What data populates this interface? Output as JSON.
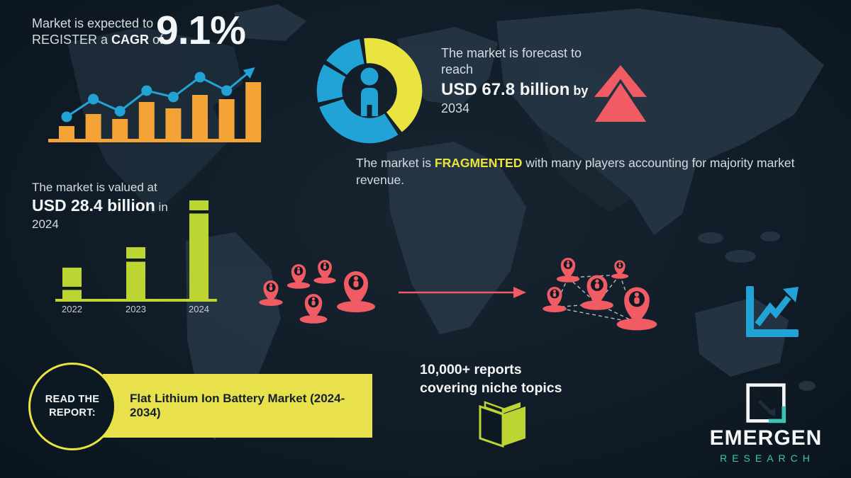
{
  "colors": {
    "background": "#0d1924",
    "map_land": "#263645",
    "map_land_dark": "#1e2d3a",
    "orange": "#f4a337",
    "blue": "#22a3d6",
    "yellow": "#e9e43f",
    "banner_yellow": "#e9e14c",
    "green": "#bdd532",
    "red": "#f15b63",
    "teal": "#3fc3b5",
    "dark": "#0d1a24",
    "text_light": "#d6dce0",
    "text_white": "#f3f5f6",
    "dash": "#cfd6da"
  },
  "cagr_block": {
    "line1": "Market is expected to",
    "line2_pre": "REGISTER a ",
    "line2_bold": "CAGR",
    "line2_post": " of",
    "value": "9.1%"
  },
  "forecast_block": {
    "line1": "The market is forecast to",
    "line2": "reach",
    "value": "USD 67.8 billion",
    "suffix": " by",
    "year": "2034"
  },
  "fragmented_note": {
    "pre": "The market is ",
    "highlight": "FRAGMENTED",
    "post": " with many players accounting for majority market revenue."
  },
  "valuation_block": {
    "line1": "The market is valued at",
    "value": "USD 28.4 billion",
    "suffix": " in",
    "year": "2024"
  },
  "cta": {
    "circle_label": "READ THE REPORT:",
    "report_title": "Flat Lithium Ion Battery Market (2024-2034)"
  },
  "reports_note": {
    "line1": "10,000+ reports",
    "line2": "covering niche topics"
  },
  "brand": {
    "name": "EMERGEN",
    "sub": "RESEARCH"
  },
  "pins": {
    "left_cluster_count": 5,
    "right_cluster_count": 5,
    "meaning": "many fragmented players converging into a connected network"
  },
  "chart_data": [
    {
      "id": "cagr_trend_chart",
      "type": "bar",
      "title": "Market growth trend (CAGR 9.1%)",
      "categories": [
        "",
        "",
        "",
        "",
        "",
        "",
        "",
        ""
      ],
      "values": [
        18,
        35,
        28,
        52,
        43,
        62,
        56,
        80
      ],
      "line_overlay": [
        31,
        56,
        39,
        68,
        59,
        87,
        68
      ],
      "arrow_end_value": 99,
      "unit": "relative height (unlabeled axis)",
      "grid": false,
      "legend": false
    },
    {
      "id": "valuation_chart",
      "type": "bar",
      "title": "Market valuation by year",
      "categories": [
        "2022",
        "2023",
        "2024"
      ],
      "values": [
        9.0,
        14.9,
        28.4
      ],
      "unit": "USD billion (2024 = 28.4 labeled; 2022/2023 estimated from bar heights)",
      "ylim": [
        0,
        28.4
      ],
      "grid": false,
      "legend": false
    },
    {
      "id": "market_share_donut",
      "type": "pie",
      "title": "Fragmented market share (illustrative)",
      "segments": [
        {
          "color_key": "yellow",
          "percent": 41,
          "start_deg": -6,
          "end_deg": 142
        },
        {
          "color_key": "blue",
          "percent": 29,
          "start_deg": 147,
          "end_deg": 252
        },
        {
          "color_key": "blue",
          "percent": 12,
          "start_deg": 257,
          "end_deg": 300
        },
        {
          "color_key": "blue",
          "percent": 12,
          "start_deg": 305,
          "end_deg": 349
        }
      ],
      "center_icon": "person-icon",
      "legend": false
    }
  ]
}
